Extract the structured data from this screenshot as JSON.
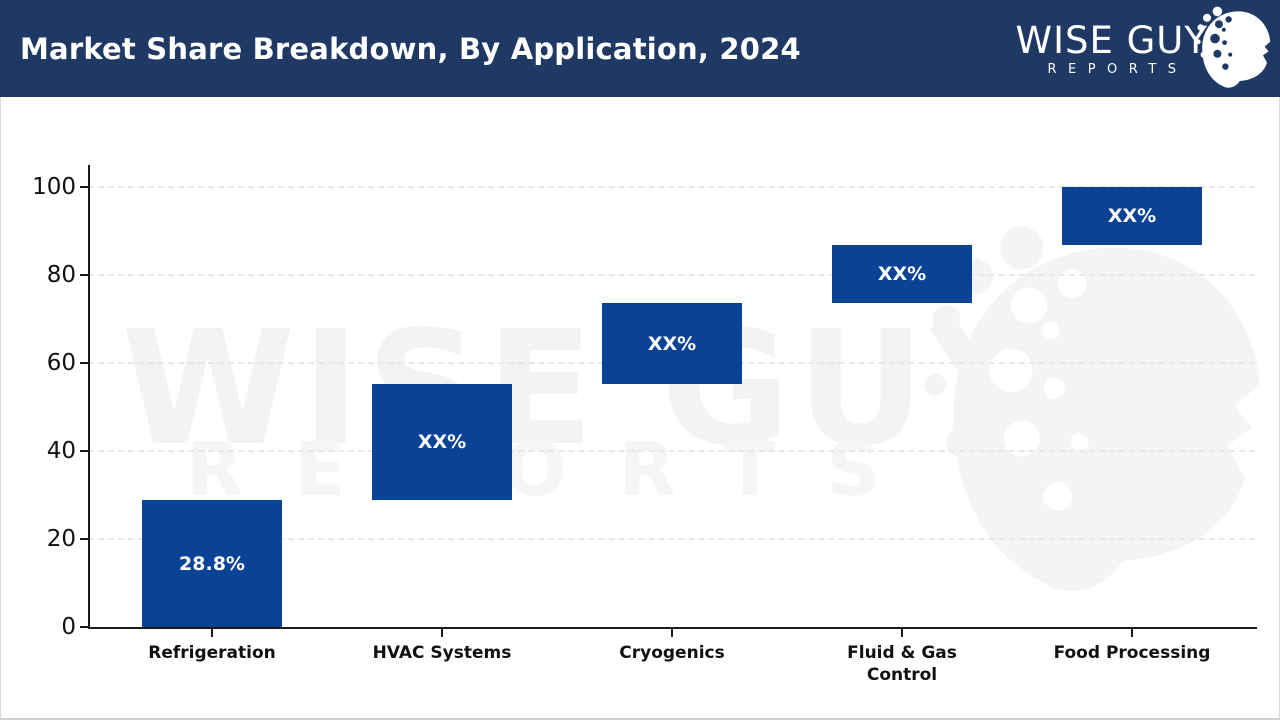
{
  "header": {
    "title": "Market Share Breakdown, By Application, 2024",
    "bg_color": "#1F3864",
    "logo": {
      "line1": "WISE GUY",
      "line2": "REPORTS"
    }
  },
  "watermark": {
    "line1": "WISE GUY",
    "line2": "REPORTS"
  },
  "chart_data": {
    "type": "bar",
    "subtype": "waterfall",
    "title": "Market Share Breakdown, By Application, 2024",
    "categories": [
      "Refrigeration",
      "HVAC Systems",
      "Cryogenics",
      "Fluid & Gas Control",
      "Food Processing"
    ],
    "segments": [
      {
        "label": "Refrigeration",
        "tick_label": "Refrigeration",
        "start": 0,
        "end": 28.8,
        "display_label": "28.8%"
      },
      {
        "label": "HVAC Systems",
        "tick_label": "HVAC Systems",
        "start": 28.8,
        "end": 55.2,
        "display_label": "XX%"
      },
      {
        "label": "Cryogenics",
        "tick_label": "Cryogenics",
        "start": 55.2,
        "end": 73.6,
        "display_label": "XX%"
      },
      {
        "label": "Fluid & Gas Control",
        "tick_label": "Fluid & Gas\nControl",
        "start": 73.6,
        "end": 86.8,
        "display_label": "XX%"
      },
      {
        "label": "Food Processing",
        "tick_label": "Food Processing",
        "start": 86.8,
        "end": 100,
        "display_label": "XX%"
      }
    ],
    "y_ticks": [
      0,
      20,
      40,
      60,
      80,
      100
    ],
    "ylim": [
      0,
      105
    ],
    "bar_color": "#0A4296",
    "grid": "dashed horizontal",
    "legend": "none"
  }
}
